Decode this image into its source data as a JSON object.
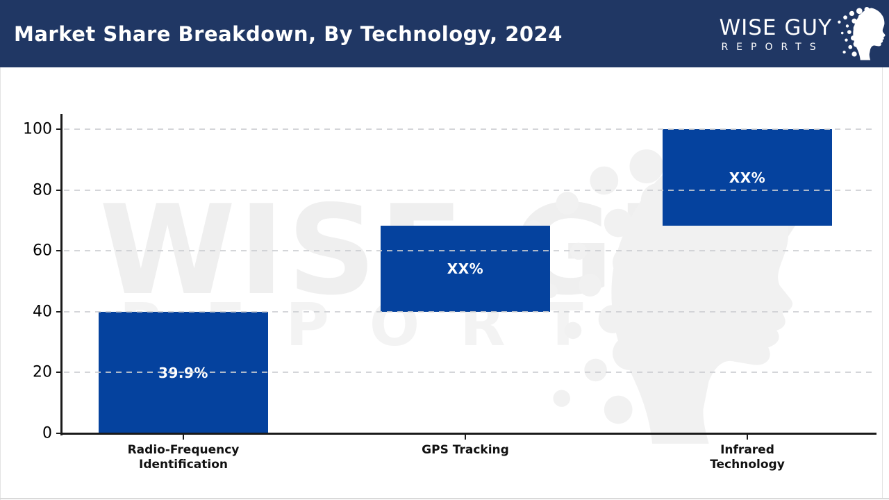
{
  "header": {
    "title": "Market Share Breakdown, By Technology, 2024",
    "logo": {
      "line1": "WISE GUY",
      "line2": "REPORTS"
    }
  },
  "watermark": {
    "line1": "WISE GUY",
    "line2": "REPORTS"
  },
  "colors": {
    "header_bg": "#203764",
    "bar": "#05429e",
    "bar_label": "#ffffff",
    "grid": "#cccccc",
    "axis": "#1a1a1a",
    "watermark": "#f1f1f1"
  },
  "chart_data": {
    "type": "bar",
    "variant": "floating-waterfall",
    "title": "Market Share Breakdown, By Technology, 2024",
    "categories": [
      "Radio-Frequency\nIdentification",
      "GPS Tracking",
      "Infrared\nTechnology"
    ],
    "segments": [
      {
        "category": "Radio-Frequency Identification",
        "start": 0,
        "end": 39.9,
        "label": "39.9%"
      },
      {
        "category": "GPS Tracking",
        "start": 39.9,
        "end": 68.2,
        "label": "XX%"
      },
      {
        "category": "Infrared Technology",
        "start": 68.2,
        "end": 100,
        "label": "XX%"
      }
    ],
    "ylim": [
      0,
      100
    ],
    "yticks": [
      0,
      20,
      40,
      60,
      80,
      100
    ],
    "grid": "horizontal-dashed",
    "legend": "none",
    "bar_color": "#05429e",
    "value_label_color": "#ffffff"
  }
}
